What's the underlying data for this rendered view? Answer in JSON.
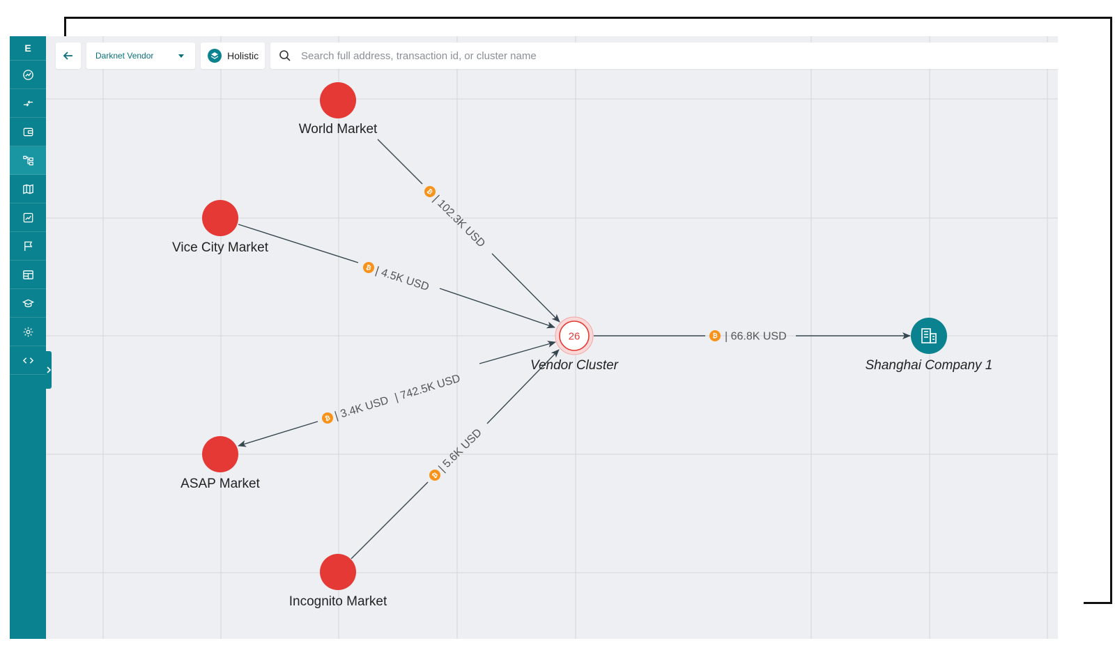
{
  "sidebar": {
    "logo": "E",
    "items": [
      {
        "icon": "analytics-icon"
      },
      {
        "icon": "transfer-arrows-icon"
      },
      {
        "icon": "wallet-icon"
      },
      {
        "icon": "graph-network-icon",
        "active": true
      },
      {
        "icon": "map-icon"
      },
      {
        "icon": "chart-icon"
      },
      {
        "icon": "flag-icon"
      },
      {
        "icon": "table-icon"
      },
      {
        "icon": "graduation-cap-icon"
      },
      {
        "icon": "gear-icon"
      },
      {
        "icon": "code-icon"
      }
    ],
    "collapse_toggle_icon": "chevron-right-icon"
  },
  "toolbar": {
    "back_icon": "arrow-left-icon",
    "dropdown_value": "Darknet Vendor",
    "holistic_label": "Holistic",
    "search_placeholder": "Search full address, transaction id, or cluster name"
  },
  "graph": {
    "nodes": [
      {
        "id": "world",
        "label": "World Market",
        "type": "darknet-market",
        "color": "#e53935"
      },
      {
        "id": "vice",
        "label": "Vice City Market",
        "type": "darknet-market",
        "color": "#e53935"
      },
      {
        "id": "asap",
        "label": "ASAP Market",
        "type": "darknet-market",
        "color": "#e53935"
      },
      {
        "id": "incognito",
        "label": "Incognito Market",
        "type": "darknet-market",
        "color": "#e53935"
      },
      {
        "id": "vendor",
        "label": "Vendor Cluster",
        "type": "cluster",
        "count": "26",
        "color": "#e53935"
      },
      {
        "id": "shanghai",
        "label": "Shanghai Company 1",
        "type": "business",
        "icon": "building-icon",
        "color": "#0a8290"
      }
    ],
    "edges": [
      {
        "from": "world",
        "to": "vendor",
        "amount": "| 102.3K USD",
        "asset_icon": "bitcoin-icon"
      },
      {
        "from": "vice",
        "to": "vendor",
        "amount": "| 4.5K USD",
        "asset_icon": "bitcoin-icon"
      },
      {
        "from": "vendor",
        "to": "asap",
        "amount": "| 3.4K USD",
        "reverse_amount": "| 742.5K USD",
        "asset_icon": "bitcoin-icon"
      },
      {
        "from": "incognito",
        "to": "vendor",
        "amount": "| 5.6K USD",
        "asset_icon": "bitcoin-icon"
      },
      {
        "from": "vendor",
        "to": "shanghai",
        "amount": "| 66.8K USD",
        "asset_icon": "bitcoin-icon"
      }
    ]
  },
  "colors": {
    "teal": "#0a8290",
    "market_red": "#e53935",
    "bitcoin_orange": "#f7931a",
    "canvas_bg": "#eeeff2"
  }
}
